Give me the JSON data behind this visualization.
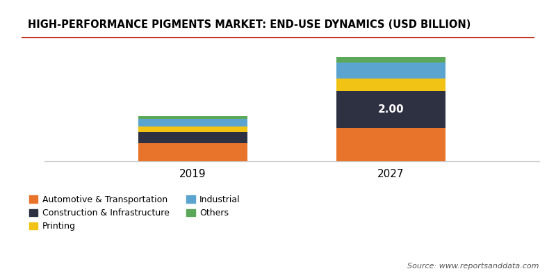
{
  "title": "HIGH-PERFORMANCE PIGMENTS MARKET: END-USE DYNAMICS (USD BILLION)",
  "years": [
    "2019",
    "2027"
  ],
  "categories": [
    "Automotive & Transportation",
    "Construction & Infrastructure",
    "Printing",
    "Industrial",
    "Others"
  ],
  "values": {
    "2019": [
      1.0,
      0.6,
      0.28,
      0.42,
      0.15
    ],
    "2027": [
      1.8,
      2.0,
      0.7,
      0.85,
      0.3
    ]
  },
  "colors": [
    "#E8732A",
    "#2D3142",
    "#F0C314",
    "#5BA4CF",
    "#5BA85A"
  ],
  "annotation": {
    "year": "2027",
    "category": "Construction & Infrastructure",
    "text": "2.00",
    "color": "white",
    "fontsize": 11
  },
  "bar_width": 0.22,
  "background_color": "#ffffff",
  "title_fontsize": 10.5,
  "source_text": "Source: www.reportsanddata.com",
  "legend_ncol": 2,
  "ylim": [
    0,
    6.5
  ],
  "spine_color": "#cccccc",
  "separator_color": "#c0392b",
  "x_positions": [
    0.3,
    0.7
  ]
}
